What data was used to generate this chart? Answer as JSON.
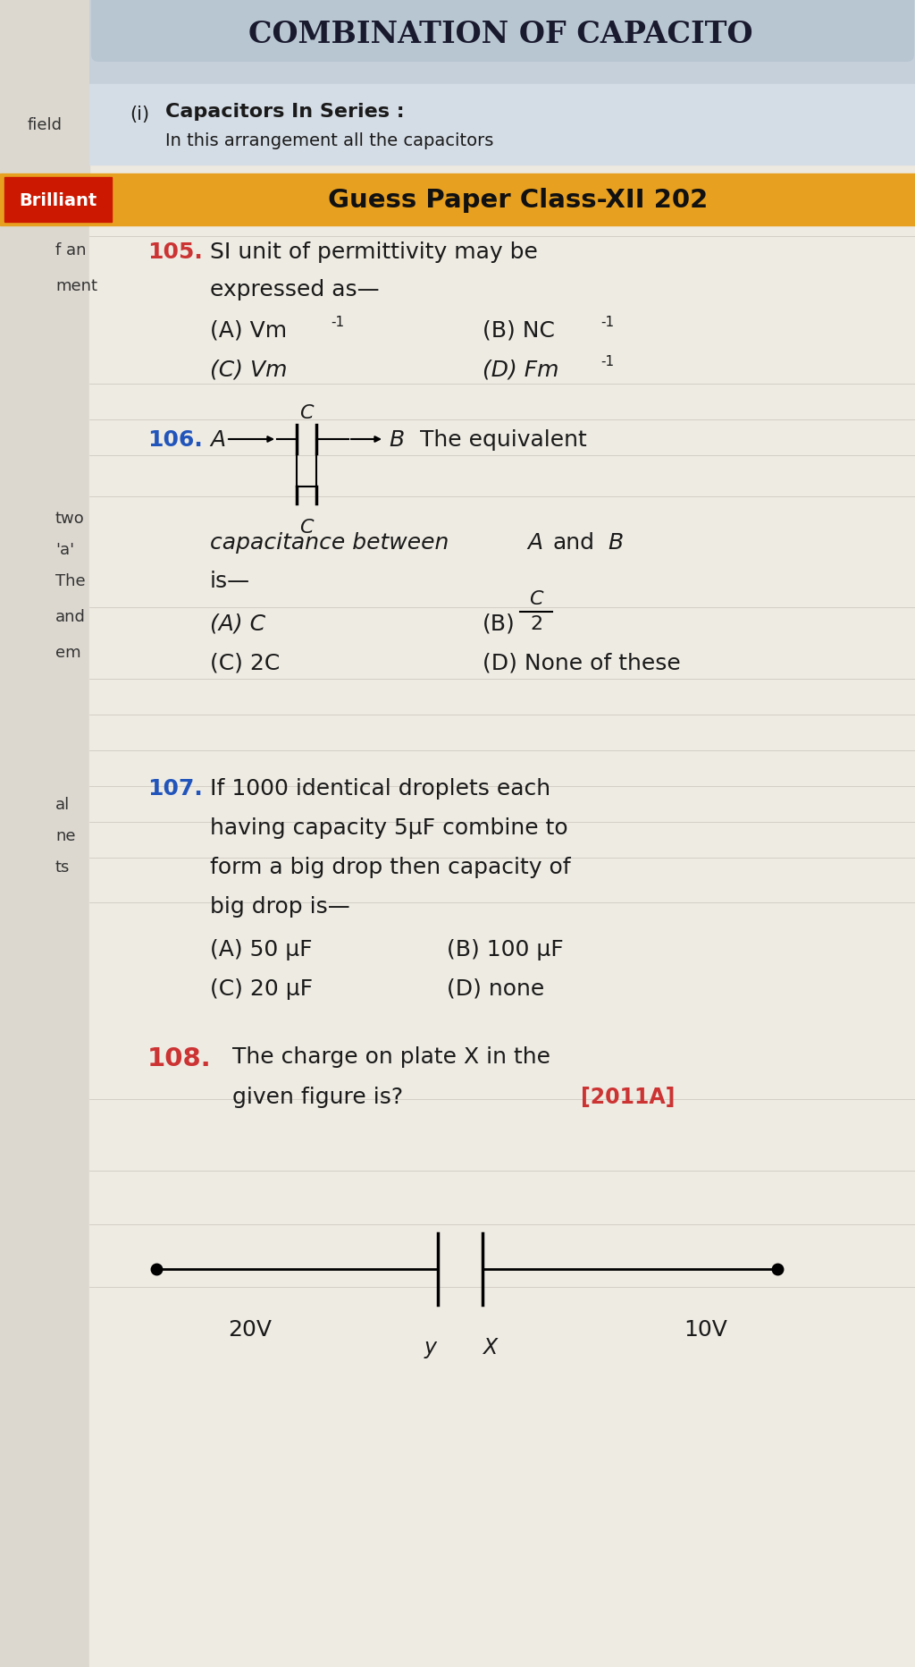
{
  "bg_color": "#e8e4de",
  "header_bg": "#c5d0da",
  "header_stripe_bg": "#b8c6d2",
  "sub_area_bg": "#d4dce5",
  "banner_orange": "#e8a020",
  "brilliant_red": "#cc1800",
  "brilliant_text": "Brilliant",
  "header_title": "COMBINATION OF CAPACITO",
  "sub_num": "(i)",
  "sub_title": "Capacitors In Series :",
  "sub_body": "In this arrangement all the capacitors",
  "side_text": "field",
  "banner_title": "Guess Paper Class-XII 202",
  "q105_num": "105.",
  "q105_color": "#cc3333",
  "q105_line1": "SI unit of permittivity may be",
  "q105_line2": "expressed as—",
  "q105_optA": "(A) Vm",
  "q105_optA_sup": "-1",
  "q105_optB": "(B) NC",
  "q105_optB_sup": "-1",
  "q105_optC": "(C) Vm",
  "q105_optD": "(D) Fm",
  "q105_optD_sup": "-1",
  "q106_num": "106.",
  "q106_color": "#2255bb",
  "q106_A": "A",
  "q106_B": "B",
  "q106_cap_top": "C",
  "q106_cap_bot": "C",
  "q106_equiv": "The equivalent",
  "q106_line2": "capacitance between",
  "q106_Aital": "A",
  "q106_and": "and",
  "q106_Bital": "B",
  "q106_is": "is—",
  "q106_optA": "(A) C",
  "q106_optB_pre": "(B)",
  "q106_optB_num": "C",
  "q106_optB_den": "2",
  "q106_optC": "(C) 2C",
  "q106_optD": "(D) None of these",
  "q107_num": "107.",
  "q107_color": "#2255bb",
  "q107_line1": "If 1000 identical droplets each",
  "q107_line2": "having capacity 5μF combine to",
  "q107_line3": "form a big drop then capacity of",
  "q107_line4": "big drop is—",
  "q107_optA": "(A) 50 μF",
  "q107_optB": "(B) 100 μF",
  "q107_optC": "(C) 20 μF",
  "q107_optD": "(D) none",
  "q108_num": "108.",
  "q108_color": "#cc3333",
  "q108_line1": "The charge on plate X in the",
  "q108_line2": "given figure is?",
  "q108_year": "[2011A]",
  "q108_year_color": "#cc3333",
  "left_col": [
    "f an",
    "ment",
    "two",
    "'a'",
    "The",
    "and",
    "em",
    "al",
    "ne",
    "ts"
  ],
  "volt_left": "20V",
  "volt_right": "10V",
  "lbl_y": "y",
  "lbl_X": "X",
  "paper_main": "#ede9e0",
  "paper_left": "#dcd8d0",
  "text_color": "#1a1a1a"
}
